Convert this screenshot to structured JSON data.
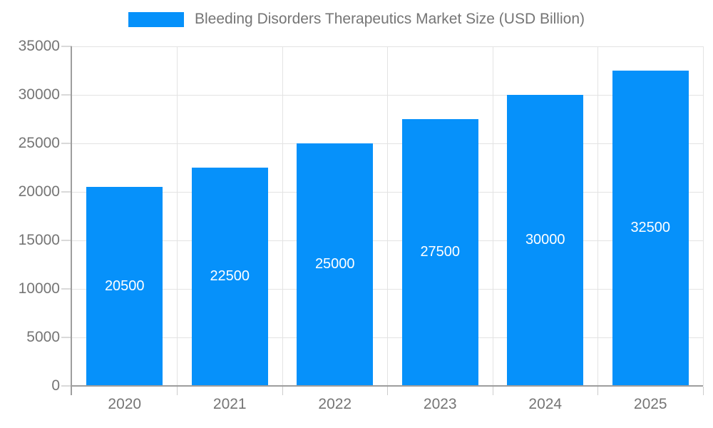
{
  "legend": {
    "label": "Bleeding Disorders Therapeutics Market Size (USD Billion)"
  },
  "colors": {
    "bar": "#0691fa",
    "bar_label_text": "#ffffff",
    "axis_line": "#9e9e9e",
    "grid_line": "#e3e3e3",
    "y_tick_mark": "#d9d9d9",
    "x_tick_mark": "#cccccc",
    "label_text": "#757575",
    "background": "#ffffff"
  },
  "chart_data": {
    "type": "bar",
    "title": "Bleeding Disorders Therapeutics Market Size (USD Billion)",
    "xlabel": "",
    "ylabel": "",
    "categories": [
      "2020",
      "2021",
      "2022",
      "2023",
      "2024",
      "2025"
    ],
    "series": [
      {
        "name": "Bleeding Disorders Therapeutics Market Size (USD Billion)",
        "values": [
          20500,
          22500,
          25000,
          27500,
          30000,
          32500
        ]
      }
    ],
    "values": [
      20500,
      22500,
      25000,
      27500,
      30000,
      32500
    ],
    "bar_value_labels": [
      "20500",
      "22500",
      "25000",
      "27500",
      "30000",
      "32500"
    ],
    "ylim": [
      0,
      35000
    ],
    "y_ticks": [
      0,
      5000,
      10000,
      15000,
      20000,
      25000,
      30000,
      35000
    ],
    "y_tick_labels": [
      "0",
      "5000",
      "10000",
      "15000",
      "20000",
      "25000",
      "30000",
      "35000"
    ],
    "grid": true,
    "legend_position": "top"
  }
}
